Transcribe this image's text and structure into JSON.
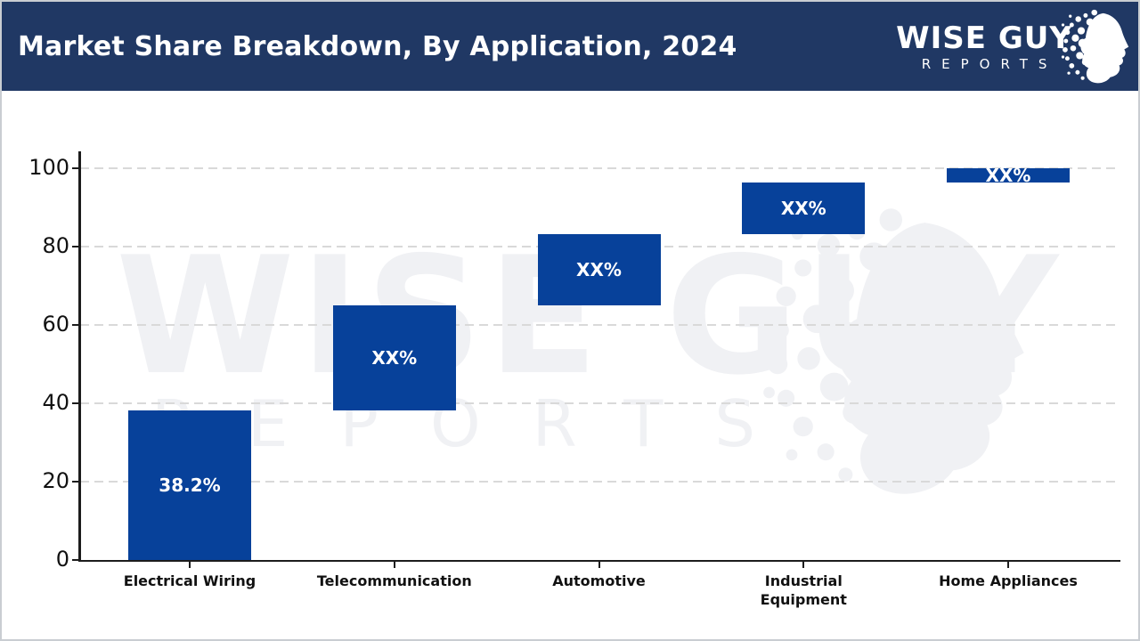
{
  "header": {
    "title": "Market Share Breakdown, By Application, 2024",
    "bg_color": "#203864",
    "brand": {
      "line1": "WISE GUY",
      "line2": "REPORTS",
      "head_icon": "dotted-head-profile-icon"
    }
  },
  "watermark": {
    "line1": "WISE GUY",
    "line2": "REPORTS",
    "head_icon": "dotted-head-profile-icon"
  },
  "chart_data": {
    "type": "bar",
    "subtype": "waterfall",
    "title": "Market Share Breakdown, By Application, 2024",
    "categories": [
      "Electrical Wiring",
      "Telecommunication",
      "Automotive",
      "Industrial Equipment",
      "Home Appliances"
    ],
    "series": [
      {
        "name": "Market Share",
        "segments": [
          {
            "category": "Electrical Wiring",
            "start": 0,
            "end": 38.2,
            "label": "38.2%"
          },
          {
            "category": "Telecommunication",
            "start": 38.2,
            "end": 65,
            "label": "XX%"
          },
          {
            "category": "Automotive",
            "start": 65,
            "end": 83,
            "label": "XX%"
          },
          {
            "category": "Industrial Equipment",
            "start": 83,
            "end": 96.3,
            "label": "XX%"
          },
          {
            "category": "Home Appliances",
            "start": 96.3,
            "end": 100,
            "label": "XX%"
          }
        ]
      }
    ],
    "xlabel": "",
    "ylabel": "",
    "ylim": [
      0,
      100
    ],
    "yticks": [
      0,
      20,
      40,
      60,
      80,
      100
    ],
    "grid": "horizontal-dashed",
    "legend": "none",
    "bar_color": "#07419a",
    "bar_label_color": "#ffffff",
    "axis_color": "#1c1c1c"
  }
}
